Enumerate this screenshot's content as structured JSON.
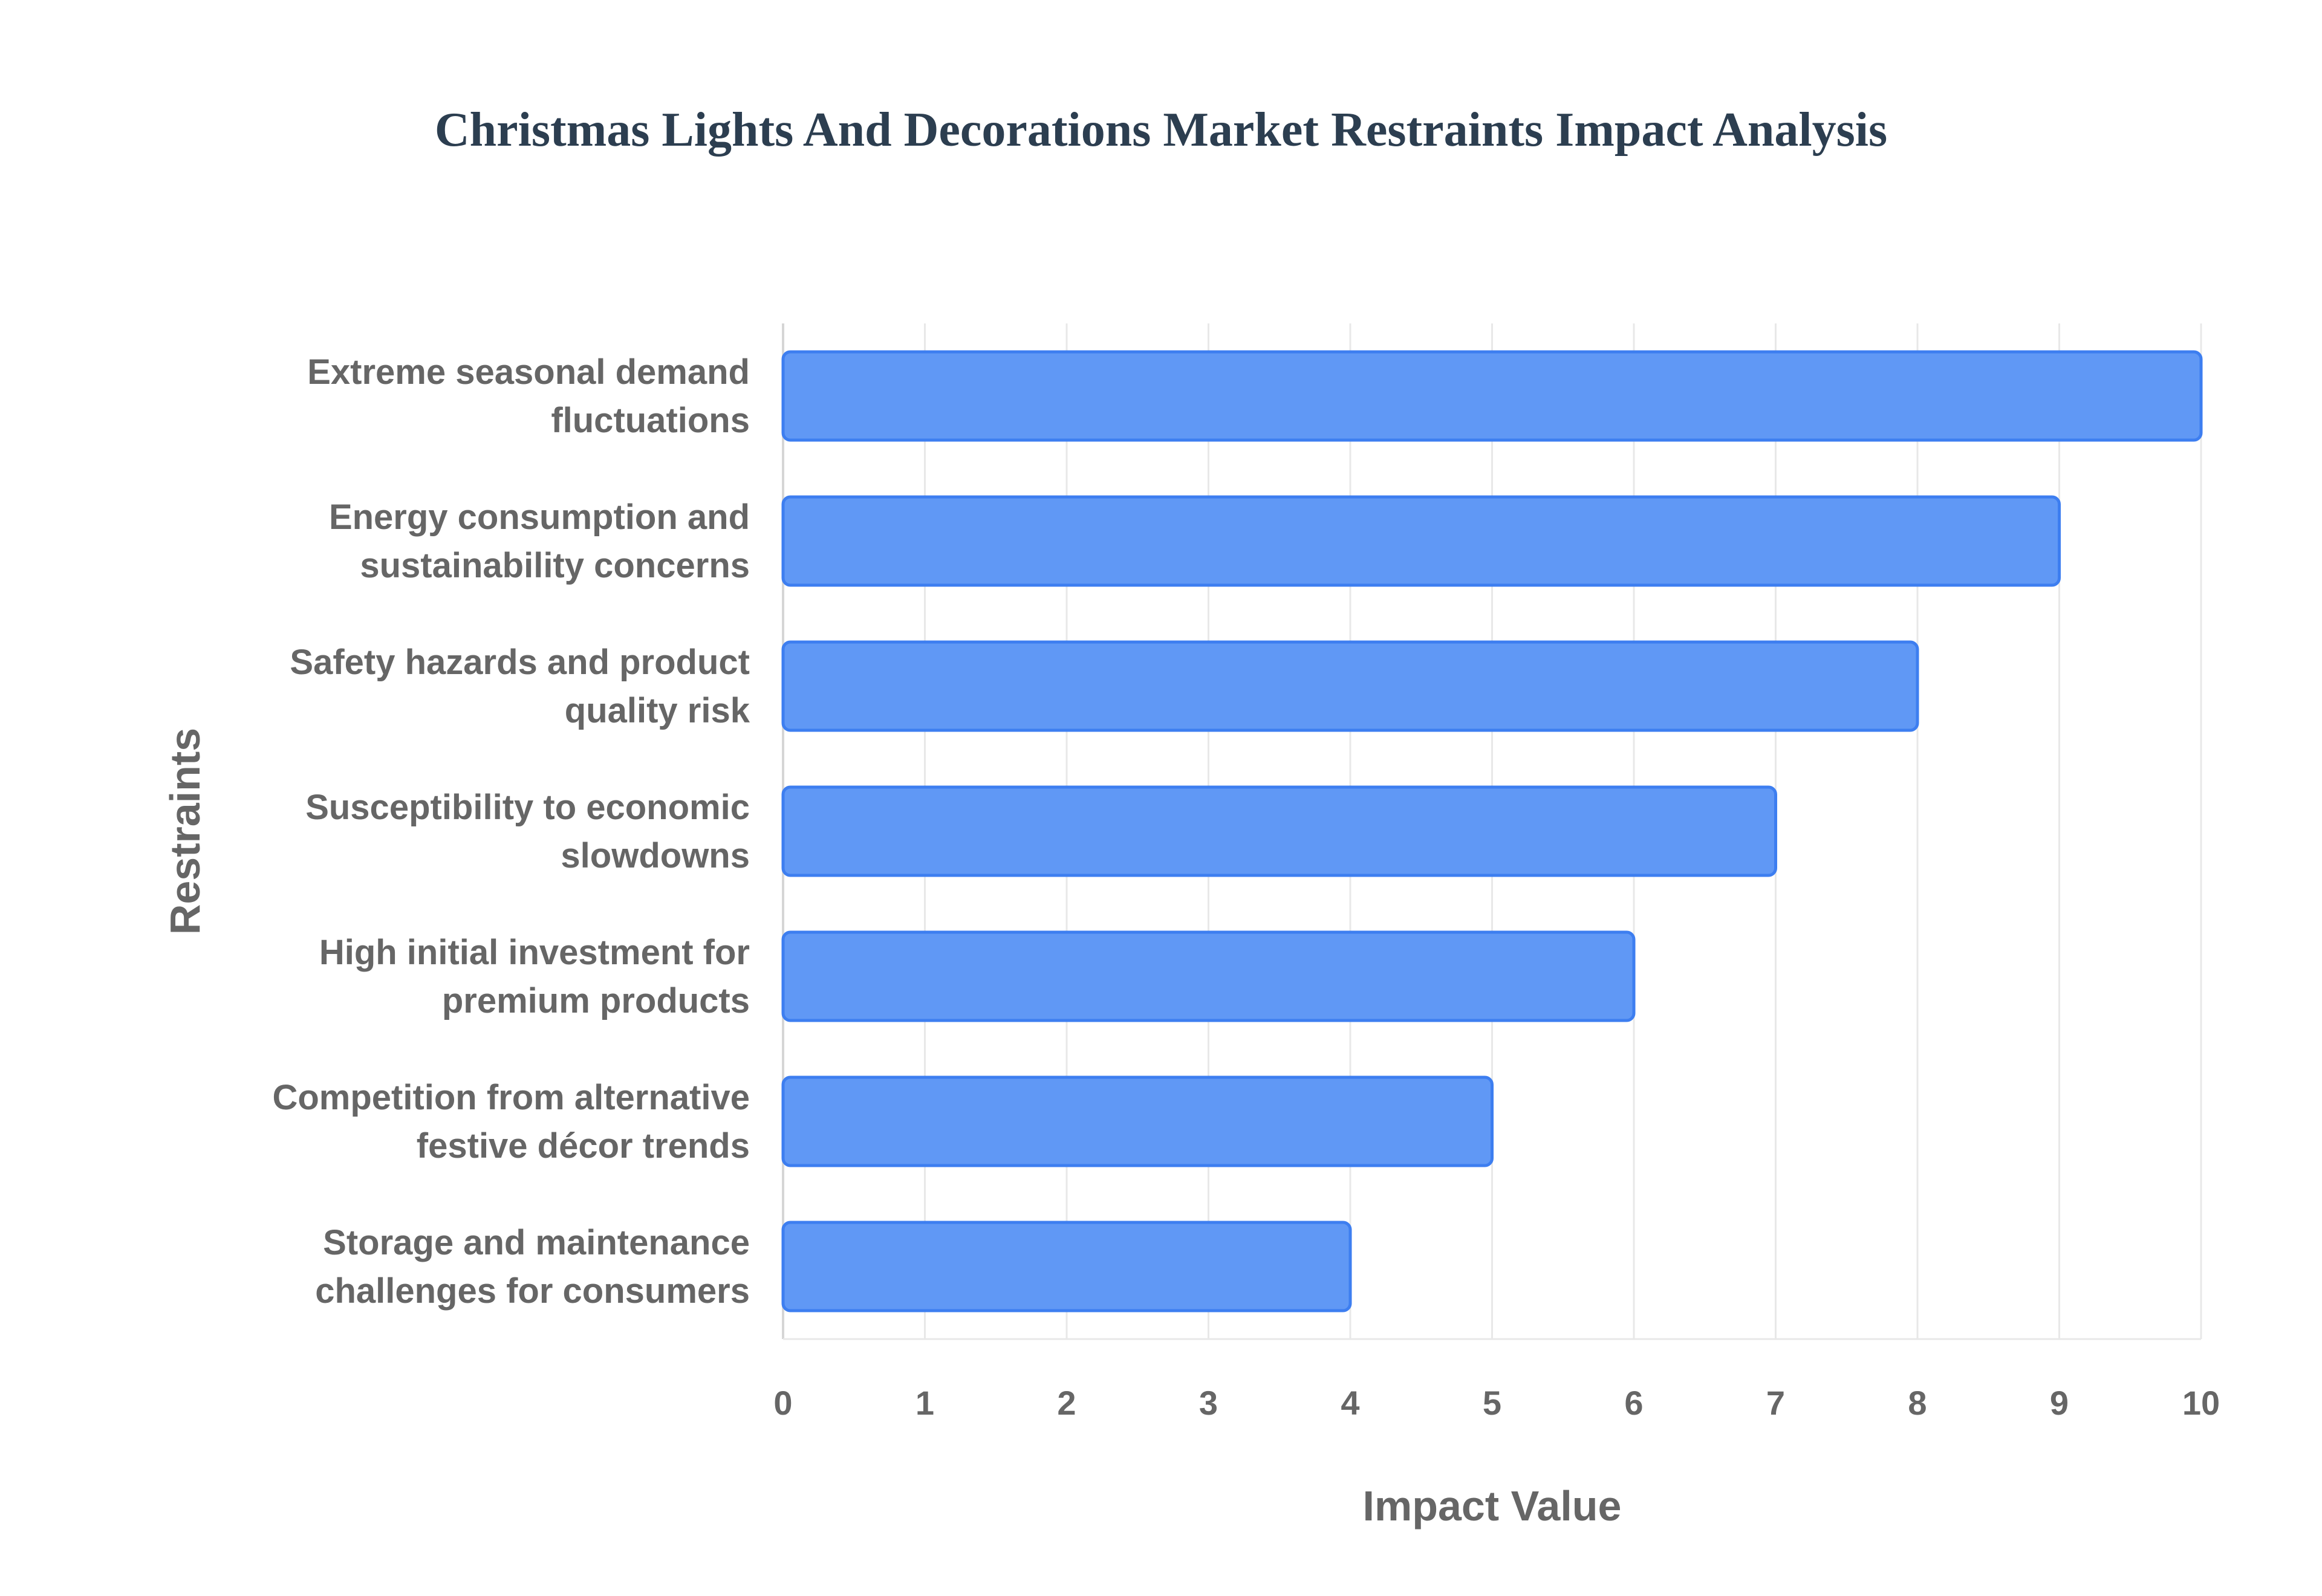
{
  "chart_data": {
    "type": "bar",
    "orientation": "horizontal",
    "title": "Christmas Lights And Decorations Market Restraints Impact Analysis",
    "xlabel": "Impact Value",
    "ylabel": "Restraints",
    "xlim": [
      0,
      10
    ],
    "xticks": [
      "0",
      "1",
      "2",
      "3",
      "4",
      "5",
      "6",
      "7",
      "8",
      "9",
      "10"
    ],
    "grid": true,
    "bar_color": "#6098f5",
    "bar_edge_color": "#3d7ef0",
    "categories": [
      [
        "Extreme seasonal demand",
        "fluctuations"
      ],
      [
        "Energy consumption and",
        "sustainability concerns"
      ],
      [
        "Safety hazards and product",
        "quality risk"
      ],
      [
        "Susceptibility to economic",
        "slowdowns"
      ],
      [
        "High initial investment for",
        "premium products"
      ],
      [
        "Competition from alternative",
        "festive décor trends"
      ],
      [
        "Storage and maintenance",
        "challenges for consumers"
      ]
    ],
    "values": [
      10,
      9,
      8,
      7,
      6,
      5,
      4
    ]
  }
}
